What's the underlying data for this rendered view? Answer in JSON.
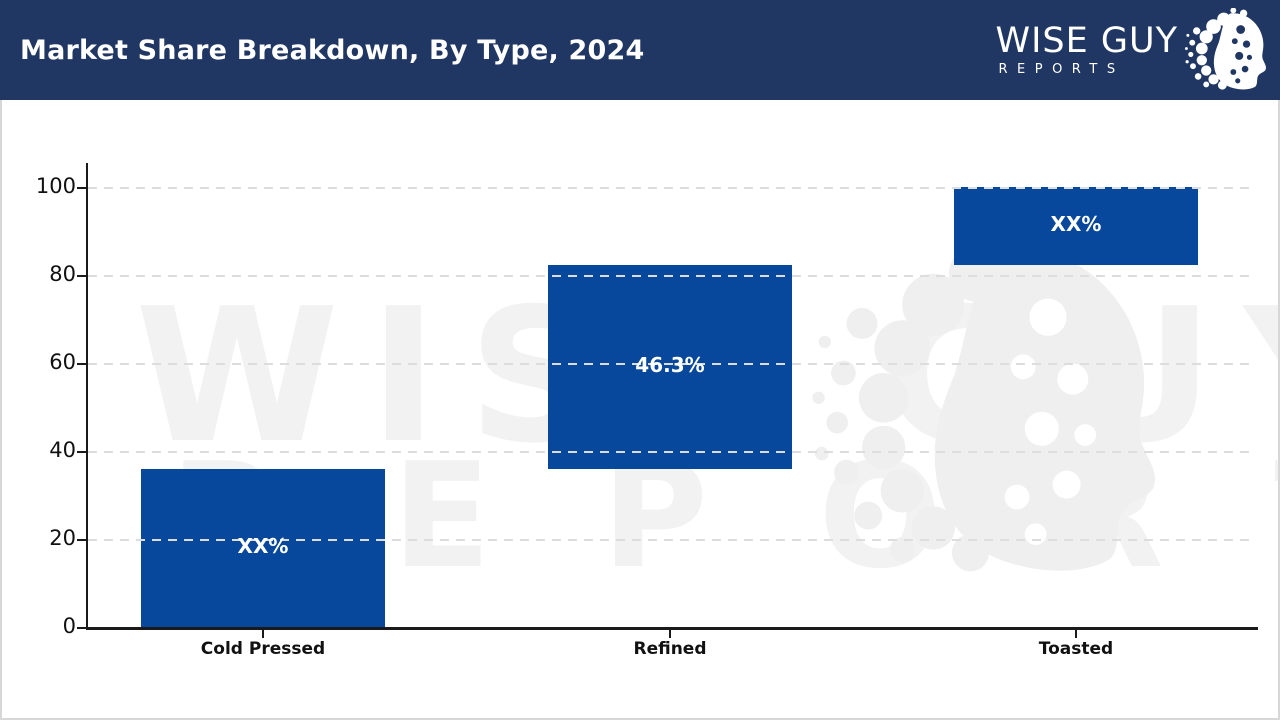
{
  "header": {
    "title": "Market Share Breakdown, By Type, 2024",
    "logo": {
      "line1": "WISE GUY",
      "line2": "REPORTS"
    }
  },
  "watermark": {
    "line1": "WISE GUY",
    "line2": "R E P O R T S"
  },
  "colors": {
    "header_bg": "#213763",
    "bar": "#07479c",
    "gridline": "#dddddd",
    "axis": "#1a1a1a",
    "watermark_text": "#f2f2f2",
    "bar_label": "#ffffff"
  },
  "chart_data": {
    "type": "bar",
    "subtype": "floating-waterfall",
    "title": "Market Share Breakdown, By Type, 2024",
    "categories": [
      "Cold Pressed",
      "Refined",
      "Toasted"
    ],
    "bars": [
      {
        "category": "Cold Pressed",
        "start": 0,
        "end": 36,
        "label": "XX%"
      },
      {
        "category": "Refined",
        "start": 36,
        "end": 82.3,
        "label": "46.3%"
      },
      {
        "category": "Toasted",
        "start": 82.3,
        "end": 100,
        "label": "XX%"
      }
    ],
    "xlabel": "",
    "ylabel": "",
    "ylim": [
      0,
      100
    ],
    "yticks": [
      0,
      20,
      40,
      60,
      80,
      100
    ],
    "grid": "horizontal-dashed",
    "legend": "none"
  }
}
